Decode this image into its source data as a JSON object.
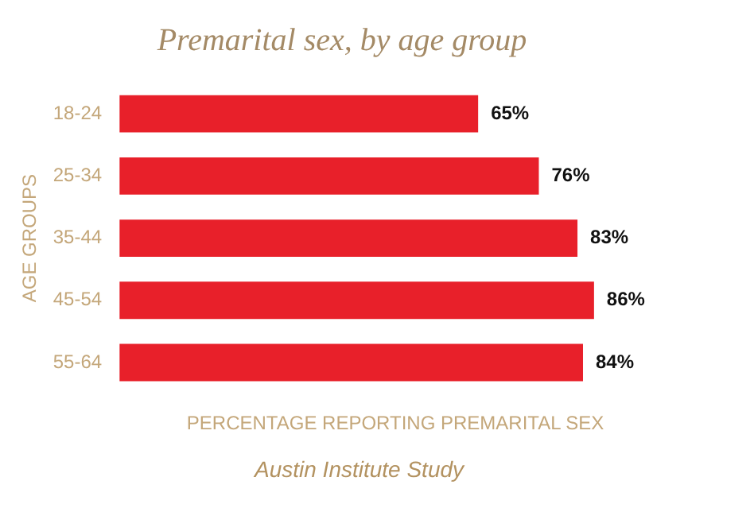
{
  "chart_data": {
    "type": "bar",
    "orientation": "horizontal",
    "title": "Premarital sex, by age group",
    "xlabel": "PERCENTAGE REPORTING PREMARITAL SEX",
    "ylabel": "AGE GROUPS",
    "categories": [
      "18-24",
      "25-34",
      "35-44",
      "45-54",
      "55-64"
    ],
    "values": [
      65,
      76,
      83,
      86,
      84
    ],
    "value_labels": [
      "65%",
      "76%",
      "83%",
      "86%",
      "84%"
    ],
    "color": "#e8202a",
    "annotations": [
      "Austin Institute Study"
    ],
    "grid": false,
    "legend": false
  }
}
